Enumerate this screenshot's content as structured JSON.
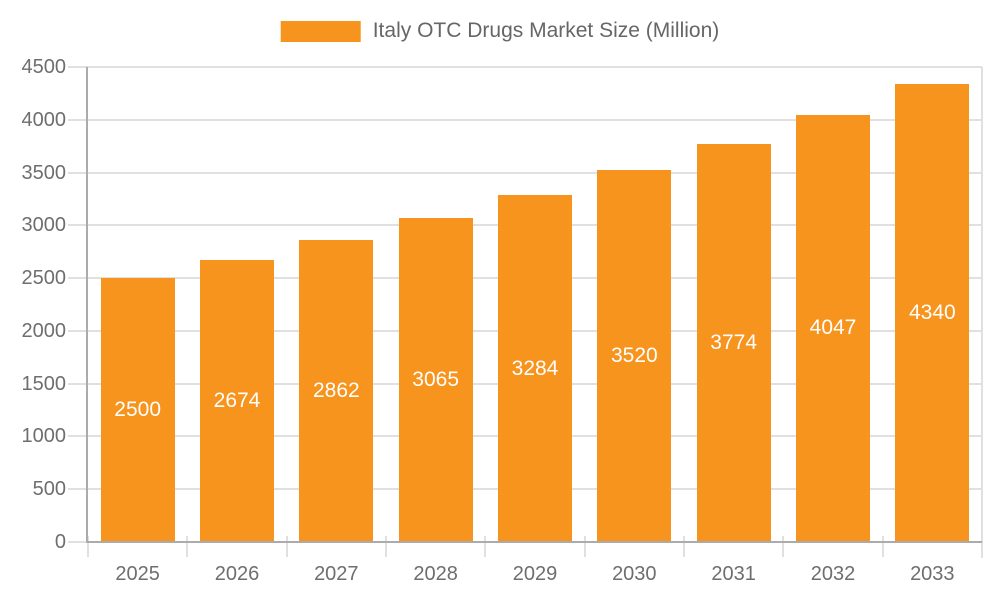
{
  "legend": {
    "label": "Italy OTC Drugs Market Size (Million)"
  },
  "chart_data": {
    "type": "bar",
    "title": "Italy OTC Drugs Market Size (Million)",
    "categories": [
      "2025",
      "2026",
      "2027",
      "2028",
      "2029",
      "2030",
      "2031",
      "2032",
      "2033"
    ],
    "values": [
      2500,
      2674,
      2862,
      3065,
      3284,
      3520,
      3774,
      4047,
      4340
    ],
    "series": [
      {
        "name": "Italy OTC Drugs Market Size (Million)",
        "values": [
          2500,
          2674,
          2862,
          3065,
          3284,
          3520,
          3774,
          4047,
          4340
        ]
      }
    ],
    "value_labels": [
      "2500",
      "2674",
      "2862",
      "3065",
      "3284",
      "3520",
      "3774",
      "4047",
      "4340"
    ],
    "value_label_position": "inside-center",
    "xlabel": "",
    "ylabel": "",
    "ylim": [
      0,
      4500
    ],
    "ytick_step": 500,
    "ytick_labels": [
      "0",
      "500",
      "1000",
      "1500",
      "2000",
      "2500",
      "3000",
      "3500",
      "4000",
      "4500"
    ],
    "grid": true,
    "legend_position": "top-center"
  },
  "colors": {
    "bar": "#F7941E",
    "grid": "#E0E0E0",
    "axis": "#ABABAB",
    "axis_text": "#6E6E6E",
    "legend_text": "#666666",
    "value_text": "#FFFFFF",
    "background": "#FFFFFF"
  }
}
